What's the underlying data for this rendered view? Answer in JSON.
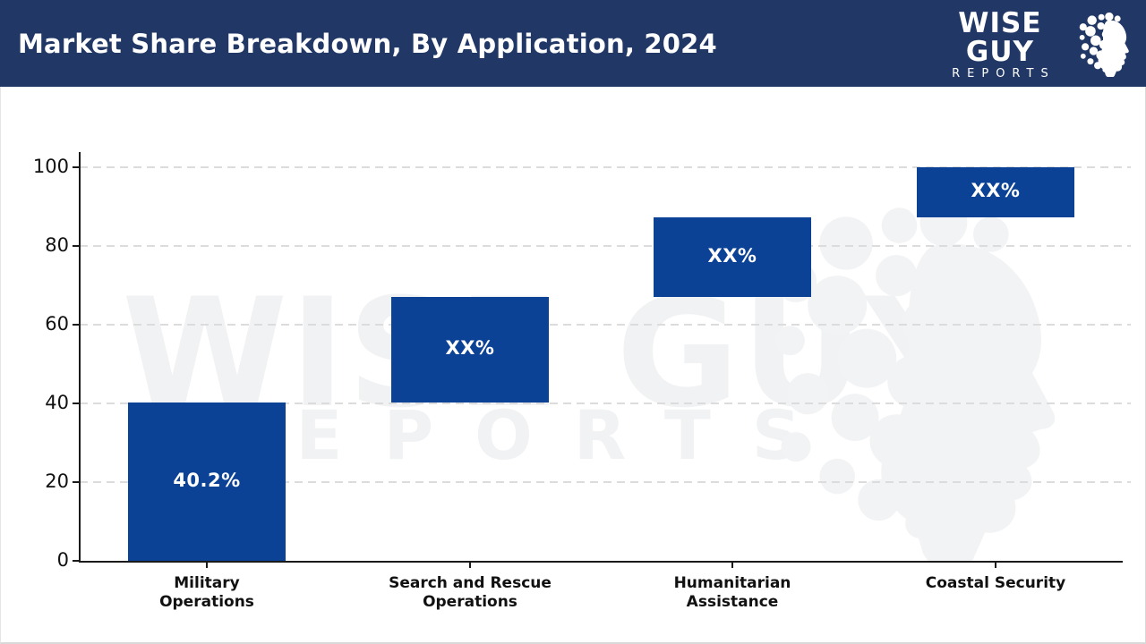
{
  "header": {
    "title": "Market Share Breakdown, By Application, 2024",
    "bg_color": "#213766",
    "logo": {
      "line1": "WISE GUY",
      "line2": "REPORTS"
    }
  },
  "watermark": {
    "line1": "WISE GUY",
    "line2": "REPORTS"
  },
  "chart_data": {
    "type": "bar",
    "subtype": "waterfall-floating-bars",
    "title": "Market Share Breakdown, By Application, 2024",
    "categories": [
      "Military Operations",
      "Search and Rescue Operations",
      "Humanitarian Assistance",
      "Coastal Security"
    ],
    "category_lines": [
      [
        "Military",
        "Operations"
      ],
      [
        "Search and Rescue",
        "Operations"
      ],
      [
        "Humanitarian",
        "Assistance"
      ],
      [
        "Coastal Security"
      ]
    ],
    "bars": [
      {
        "category": "Military Operations",
        "start": 0,
        "end": 40.2,
        "label": "40.2%"
      },
      {
        "category": "Search and Rescue Operations",
        "start": 40.2,
        "end": 67.0,
        "label": "XX%"
      },
      {
        "category": "Humanitarian Assistance",
        "start": 67.0,
        "end": 87.3,
        "label": "XX%"
      },
      {
        "category": "Coastal Security",
        "start": 87.3,
        "end": 100,
        "label": "XX%"
      }
    ],
    "xlabel": "",
    "ylabel": "",
    "ylim": [
      0,
      100
    ],
    "yticks": [
      0,
      20,
      40,
      60,
      80,
      100
    ],
    "bar_color": "#0b4296",
    "bar_label_color": "#ffffff",
    "grid": "horizontal-dashed",
    "grid_color": "#dcdcdc",
    "legend": "none"
  }
}
